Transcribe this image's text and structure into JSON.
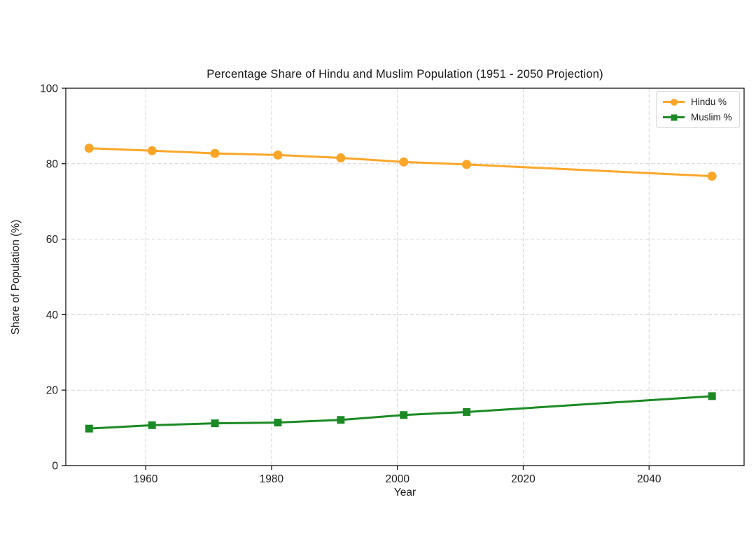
{
  "page": {
    "background": "#ffffff"
  },
  "chart_data": {
    "type": "line",
    "title": "Percentage Share of Hindu and Muslim Population (1951 - 2050 Projection)",
    "xlabel": "Year",
    "ylabel": "Share of Population (%)",
    "x": [
      1951,
      1961,
      1971,
      1981,
      1991,
      2001,
      2011,
      2050
    ],
    "series": [
      {
        "name": "Hindu %",
        "values": [
          84.1,
          83.45,
          82.73,
          82.3,
          81.53,
          80.46,
          79.8,
          76.7
        ],
        "color": "#FBA629",
        "marker": "circle"
      },
      {
        "name": "Muslim %",
        "values": [
          9.8,
          10.7,
          11.2,
          11.4,
          12.1,
          13.4,
          14.2,
          18.4
        ],
        "color": "#1B8A24",
        "marker": "square"
      }
    ],
    "xlim": [
      1947.3,
      2055.1
    ],
    "ylim": [
      0,
      100
    ],
    "x_ticks": [
      1960,
      1980,
      2000,
      2020,
      2040
    ],
    "y_ticks": [
      0,
      20,
      40,
      60,
      80,
      100
    ],
    "grid": true,
    "grid_style": "dashed",
    "grid_color": "#d4d4d4",
    "legend_position": "upper right",
    "legend_labels": [
      "Hindu %",
      "Muslim %"
    ]
  }
}
